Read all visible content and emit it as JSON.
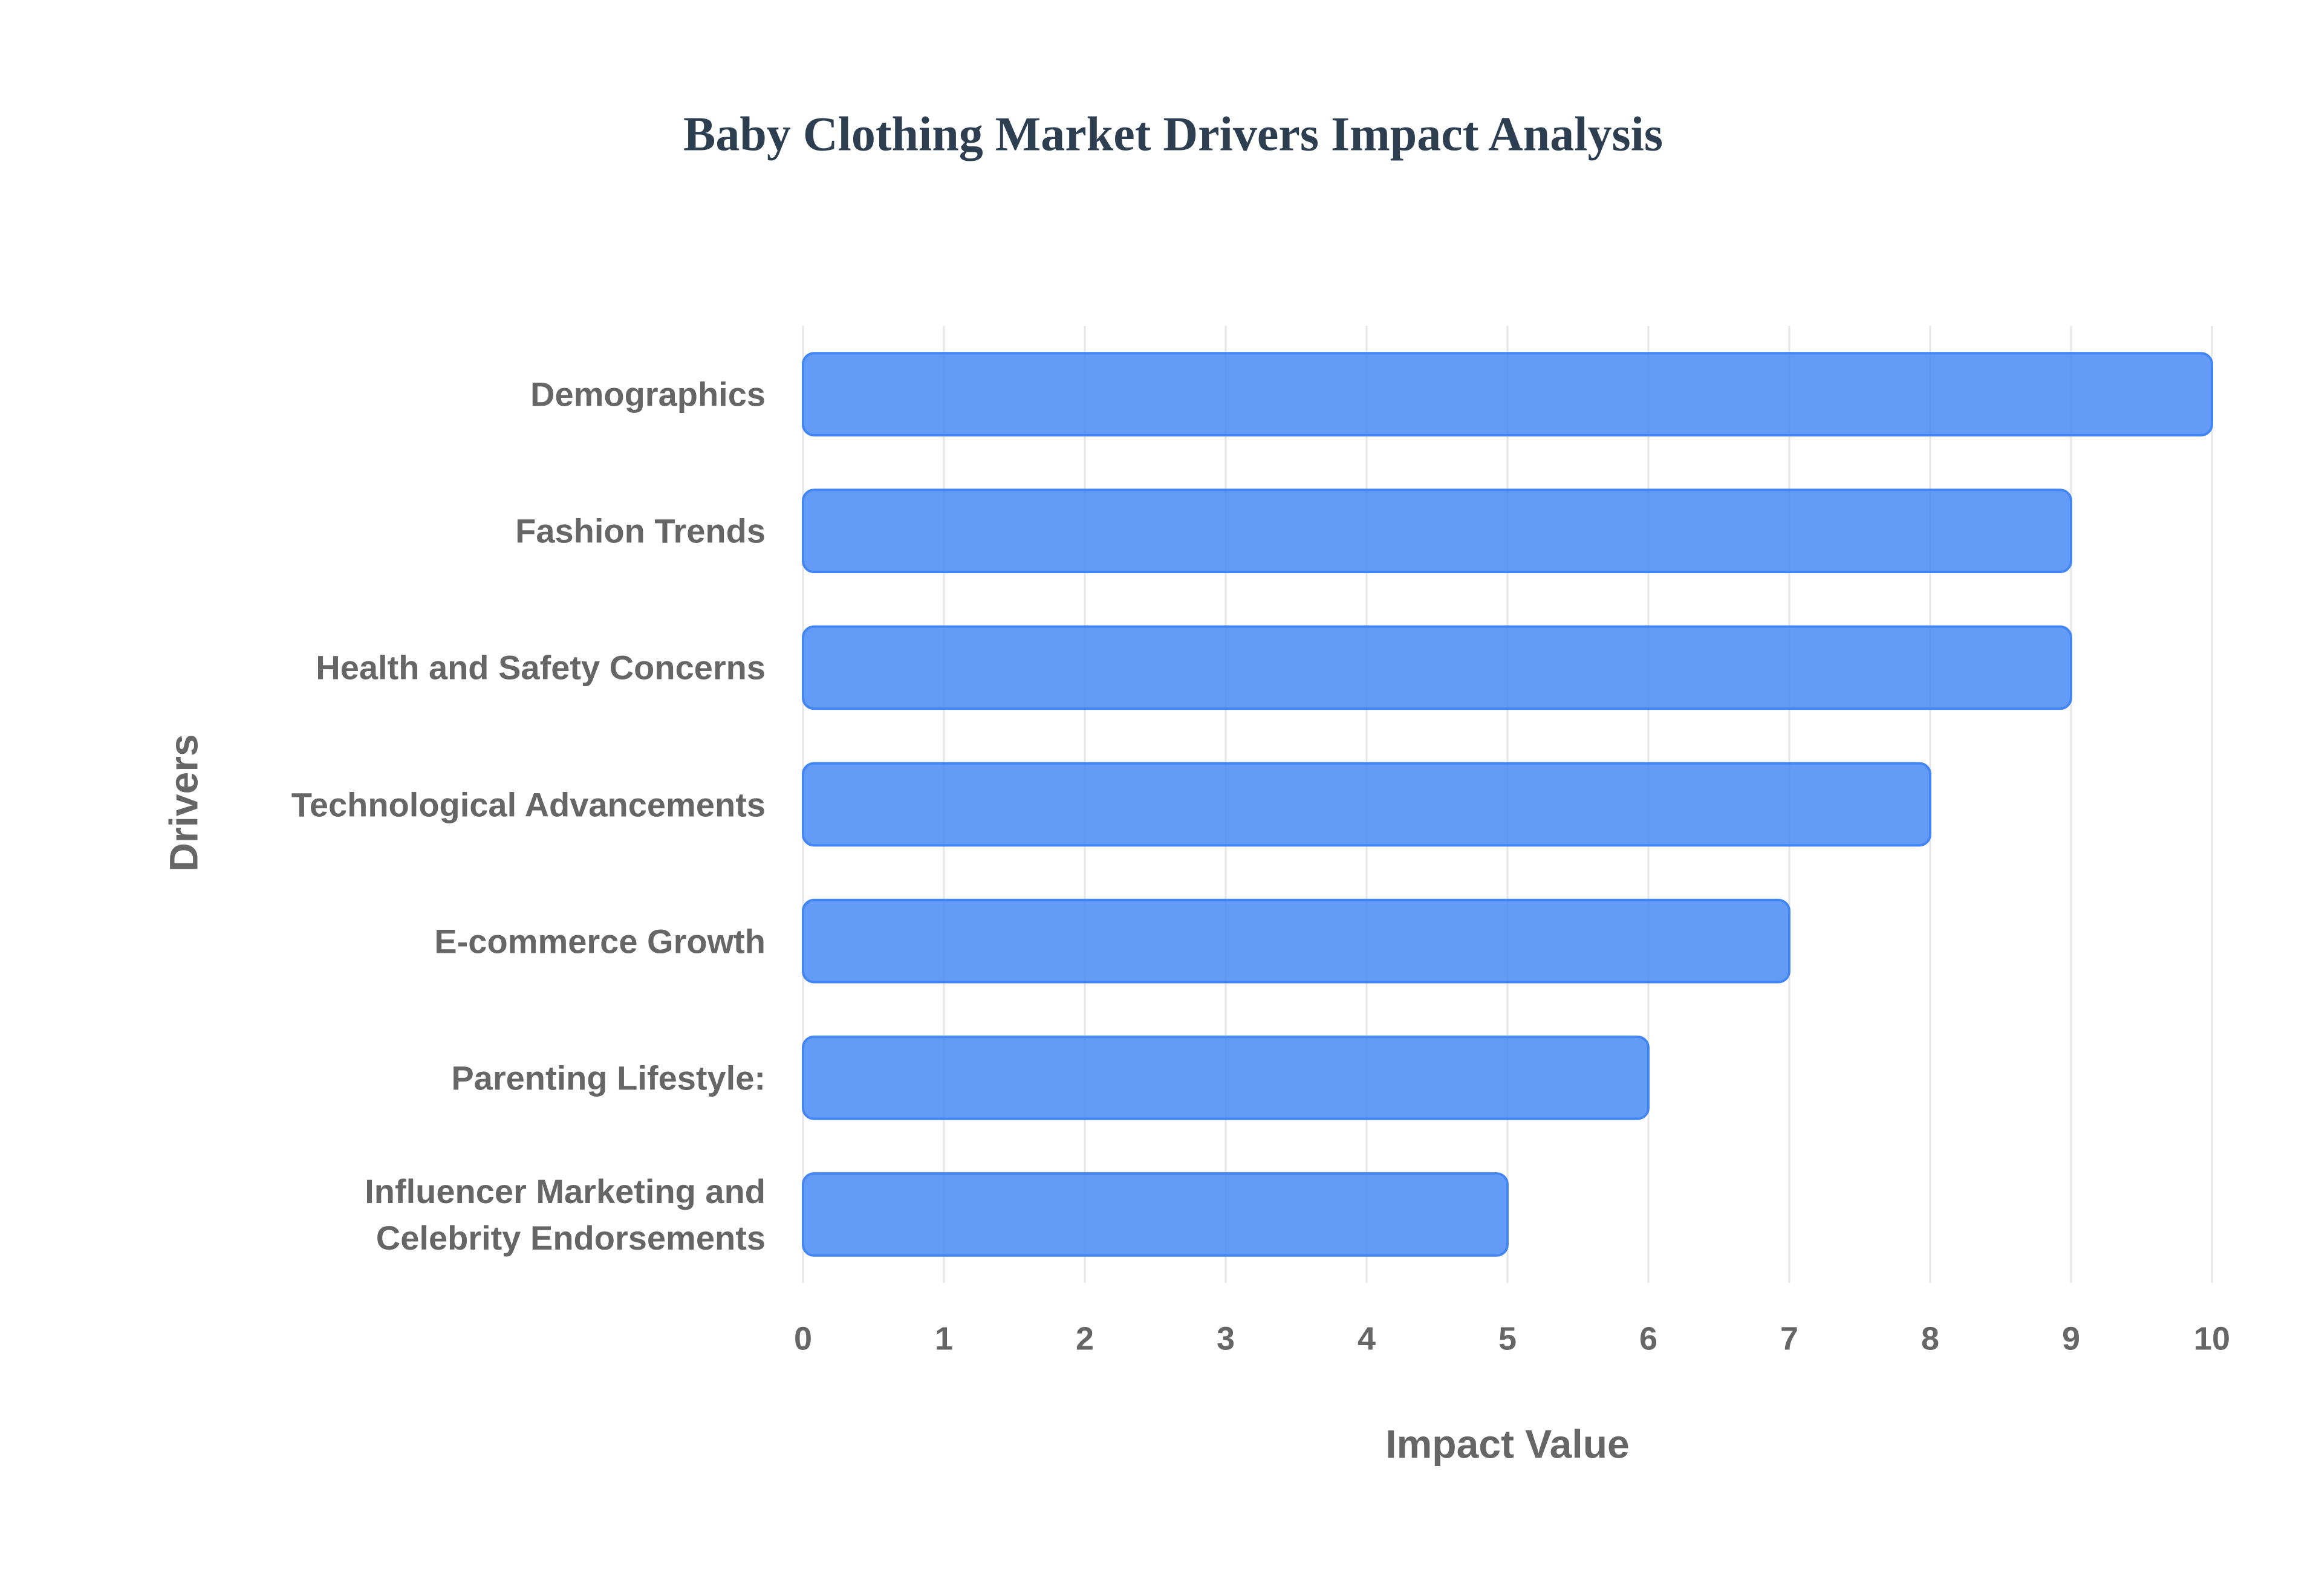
{
  "chart_data": {
    "type": "bar",
    "orientation": "horizontal",
    "title": "Baby Clothing Market Drivers Impact Analysis",
    "x_label": "Impact Value",
    "y_label": "Drivers",
    "categories": [
      "Demographics",
      "Fashion Trends",
      "Health and Safety Concerns",
      "Technological Advancements",
      "E-commerce Growth",
      "Parenting Lifestyle:",
      "Influencer Marketing and Celebrity Endorsements"
    ],
    "values": [
      10,
      9,
      9,
      8,
      7,
      6,
      5
    ],
    "color": "#4285f4",
    "xlim": [
      0,
      10
    ],
    "xticks": [
      0,
      1,
      2,
      3,
      4,
      5,
      6,
      7,
      8,
      9,
      10
    ],
    "grid": true
  }
}
